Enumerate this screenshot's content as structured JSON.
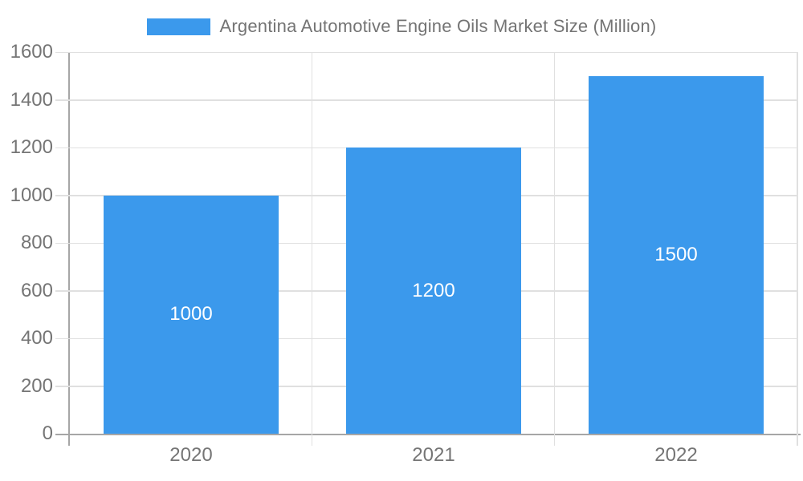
{
  "chart_data": {
    "type": "bar",
    "title": "Argentina Automotive Engine Oils Market Size (Million)",
    "categories": [
      "2020",
      "2021",
      "2022"
    ],
    "series": [
      {
        "name": "Argentina Automotive Engine Oils Market Size (Million)",
        "values": [
          1000,
          1200,
          1500
        ]
      }
    ],
    "data_labels": [
      "1000",
      "1200",
      "1500"
    ],
    "xlabel": "",
    "ylabel": "",
    "ylim": [
      0,
      1600
    ],
    "yticks": [
      0,
      200,
      400,
      600,
      800,
      1000,
      1200,
      1400,
      1600
    ],
    "grid": true,
    "legend_position": "top-center",
    "colors": {
      "bar": "#3B99EC",
      "data_label": "#FFFFFF",
      "axis": "#A6A6A6",
      "gridline": "#E0E0E0",
      "tick_label": "#757575",
      "title": "#747474",
      "background": "#FFFFFF"
    }
  }
}
